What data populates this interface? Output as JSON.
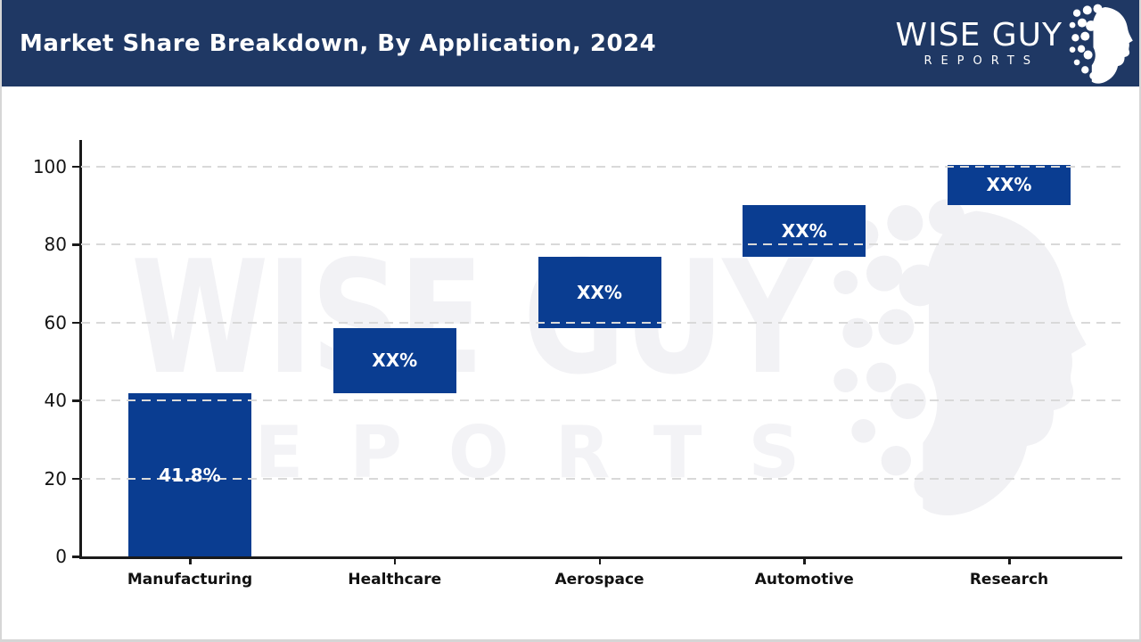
{
  "header": {
    "title": "Market Share Breakdown, By Application, 2024",
    "logo": {
      "line1": "WISE GUY",
      "line2": "REPORTS"
    }
  },
  "watermark": {
    "line1": "WISE GUY",
    "line2": "REPORTS"
  },
  "chart_data": {
    "type": "bar",
    "subtype": "waterfall",
    "title": "Market Share Breakdown, By Application, 2024",
    "categories": [
      "Manufacturing",
      "Healthcare",
      "Aerospace",
      "Automotive",
      "Research"
    ],
    "segments": [
      {
        "category": "Manufacturing",
        "start": 0,
        "end": 41.8,
        "label": "41.8%"
      },
      {
        "category": "Healthcare",
        "start": 41.8,
        "end": 58.6,
        "label": "XX%"
      },
      {
        "category": "Aerospace",
        "start": 58.6,
        "end": 76.7,
        "label": "XX%"
      },
      {
        "category": "Automotive",
        "start": 76.7,
        "end": 90.1,
        "label": "XX%"
      },
      {
        "category": "Research",
        "start": 90.1,
        "end": 100.4,
        "label": "XX%"
      }
    ],
    "yticks": [
      0,
      20,
      40,
      60,
      80,
      100
    ],
    "ylim": [
      0,
      107
    ],
    "xlabel": "",
    "ylabel": "",
    "grid": "horizontal-dashed",
    "legend": "none",
    "bar_color": "#0a3d91",
    "bar_label_color": "#ffffff"
  },
  "colors": {
    "header_bg": "#1f3864",
    "header_text": "#ffffff",
    "chart_bg": "#ffffff",
    "axis": "#1a1a1a",
    "gridline": "#d9d9d9",
    "watermark": "#f2f2f5",
    "page_border": "#d6d6d6"
  }
}
